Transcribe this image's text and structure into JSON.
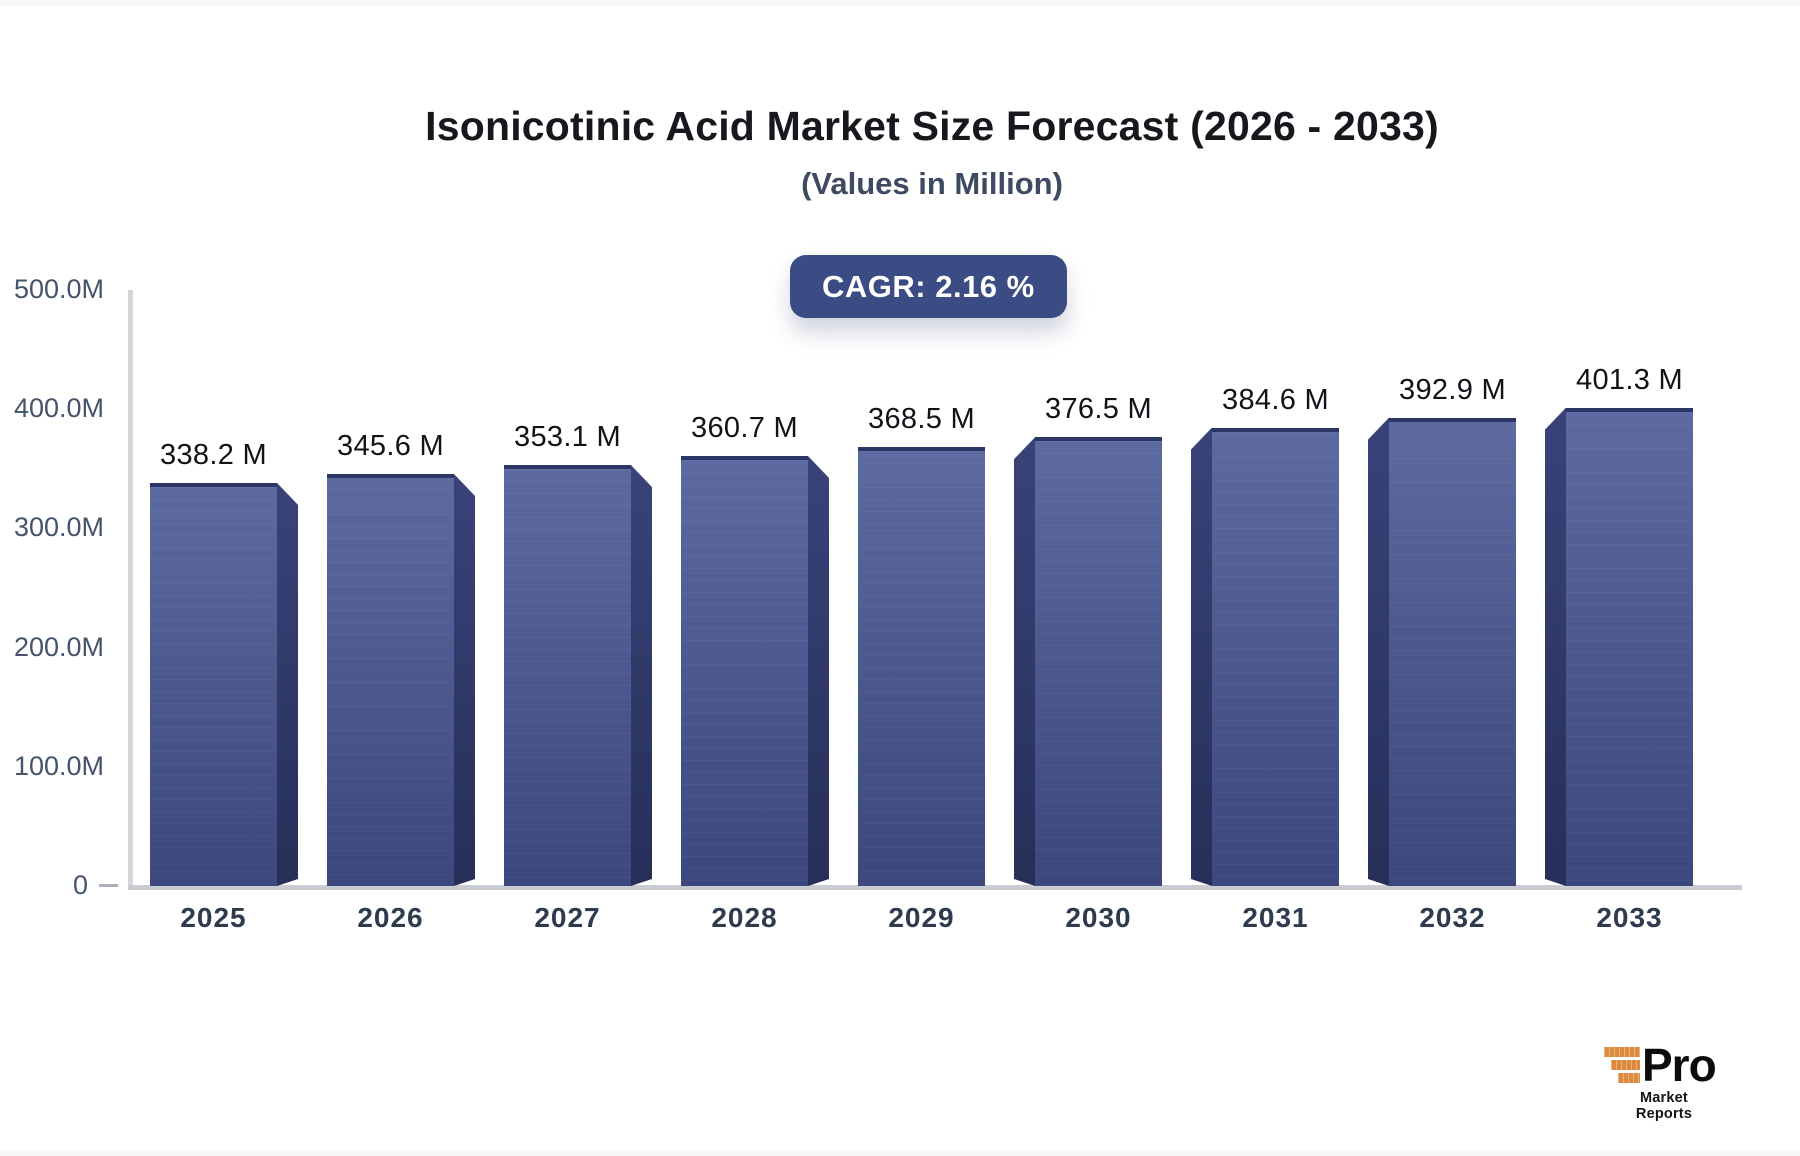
{
  "header": {
    "title": "Isonicotinic Acid Market Size Forecast (2026 - 2033)",
    "subtitle": "(Values in Million)",
    "cagr_label": "CAGR: 2.16 %"
  },
  "chart_data": {
    "type": "bar",
    "title": "Isonicotinic Acid Market Size Forecast (2026 - 2033)",
    "subtitle": "(Values in Million)",
    "cagr_percent": 2.16,
    "unit": "Million",
    "categories": [
      "2025",
      "2026",
      "2027",
      "2028",
      "2029",
      "2030",
      "2031",
      "2032",
      "2033"
    ],
    "values": [
      338.2,
      345.6,
      353.1,
      360.7,
      368.5,
      376.5,
      384.6,
      392.9,
      401.3
    ],
    "value_labels": [
      "338.2 M",
      "345.6 M",
      "353.1 M",
      "360.7 M",
      "368.5 M",
      "376.5 M",
      "384.6 M",
      "392.9 M",
      "401.3 M"
    ],
    "xlabel": "",
    "ylabel": "",
    "ylim": [
      0,
      500
    ],
    "y_tick_labels": [
      "500.0M",
      "400.0M",
      "300.0M",
      "200.0M",
      "100.0M",
      "0"
    ],
    "y_tick_values": [
      500,
      400,
      300,
      200,
      100,
      0
    ],
    "grid": false,
    "legend": false
  },
  "colors": {
    "bar_front_top": "#5c6aa1",
    "bar_front_bottom": "#3b477d",
    "bar_side": "#2c3664",
    "badge_bg": "#3b4b83",
    "badge_text": "#ffffff",
    "axis_line": "#d4d6dc",
    "baseline": "#caccd4",
    "tick_text": "#44546a",
    "year_text": "#2e3a4d",
    "value_text": "#101419",
    "logo_orange": "#dd8a3e"
  },
  "logo": {
    "name": "Pro",
    "tagline": "Market Reports"
  }
}
